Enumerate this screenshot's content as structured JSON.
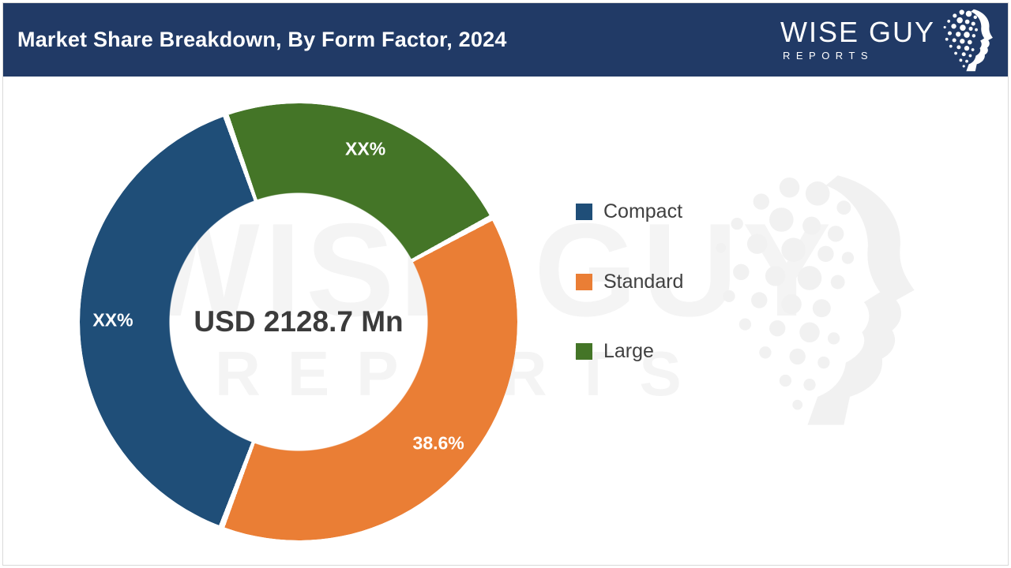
{
  "header": {
    "bg": "#213a66",
    "title": "Market Share Breakdown, By Form Factor, 2024",
    "logo": {
      "line1": "WISE GUY",
      "line2": "REPORTS"
    }
  },
  "watermark": {
    "line1": "WISE GUY",
    "line2": "REPORTS"
  },
  "chart_data": {
    "type": "pie",
    "subtype": "donut",
    "title": "Market Share Breakdown, By Form Factor, 2024",
    "center_label": "USD 2128.7 Mn",
    "legend_position": "right",
    "start_angle_deg": -19.4,
    "gap_deg": 1.6,
    "hole_ratio": 0.59,
    "slices": [
      {
        "name": "Large",
        "label": "XX%",
        "value_pct": 22.5,
        "value_masked": true,
        "color": "#447527"
      },
      {
        "name": "Standard",
        "label": "38.6%",
        "value_pct": 38.6,
        "value_masked": false,
        "color": "#EA7E35"
      },
      {
        "name": "Compact",
        "label": "XX%",
        "value_pct": 38.9,
        "value_masked": true,
        "color": "#1F4E78"
      }
    ],
    "legend": [
      {
        "label": "Compact",
        "color": "#1F4E78"
      },
      {
        "label": "Standard",
        "color": "#EA7E35"
      },
      {
        "label": "Large",
        "color": "#447527"
      }
    ]
  }
}
